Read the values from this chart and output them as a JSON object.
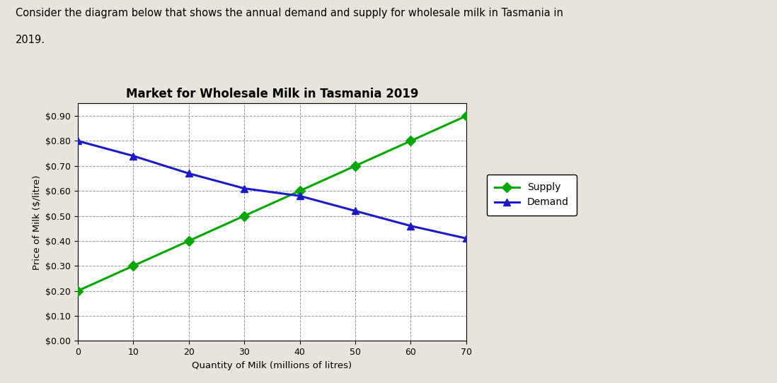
{
  "title": "Market for Wholesale Milk in Tasmania 2019",
  "xlabel": "Quantity of Milk (millions of litres)",
  "ylabel": "Price of Milk ($/litre)",
  "header_line1": "Consider the diagram below that shows the annual demand and supply for wholesale milk in Tasmania in",
  "header_line2": "2019.",
  "supply_x": [
    0,
    10,
    20,
    30,
    40,
    50,
    60,
    70
  ],
  "supply_y": [
    0.2,
    0.3,
    0.4,
    0.5,
    0.6,
    0.7,
    0.8,
    0.9
  ],
  "demand_x": [
    0,
    10,
    20,
    30,
    40,
    50,
    60,
    70
  ],
  "demand_y": [
    0.8,
    0.74,
    0.67,
    0.61,
    0.58,
    0.52,
    0.46,
    0.41
  ],
  "supply_color": "#00AA00",
  "demand_color": "#1a1aCC",
  "supply_label": "Supply",
  "demand_label": "Demand",
  "xlim": [
    0,
    70
  ],
  "ylim": [
    0.0,
    0.95
  ],
  "xticks": [
    0,
    10,
    20,
    30,
    40,
    50,
    60,
    70
  ],
  "yticks": [
    0.0,
    0.1,
    0.2,
    0.3,
    0.4,
    0.5,
    0.6,
    0.7,
    0.8,
    0.9
  ],
  "background_color": "#e8e4dc",
  "plot_bg_color": "#ffffff",
  "grid_color": "#999999",
  "marker_supply": "D",
  "marker_demand": "^",
  "linewidth": 2.2,
  "markersize": 7,
  "title_fontsize": 12,
  "label_fontsize": 9.5,
  "tick_fontsize": 9,
  "header_fontsize": 10.5,
  "legend_fontsize": 10
}
